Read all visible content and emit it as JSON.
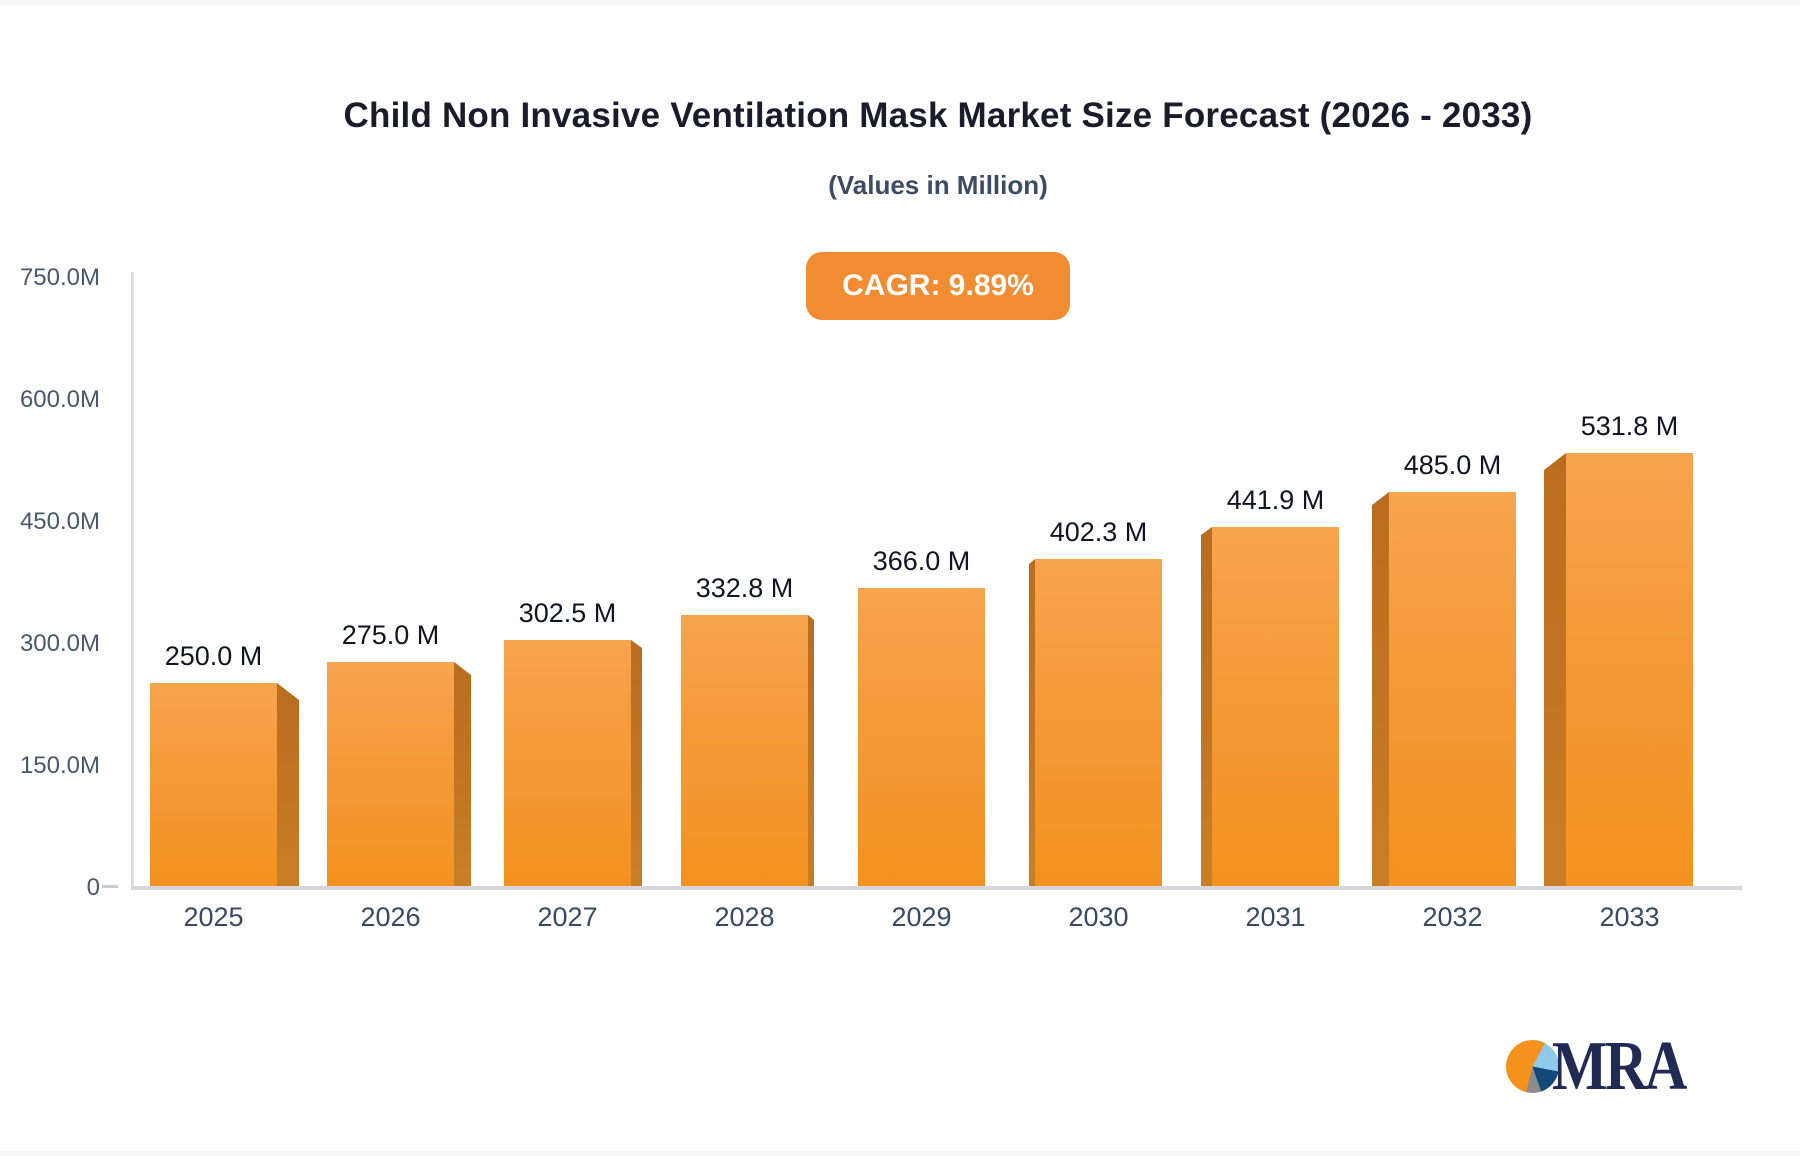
{
  "header": {
    "title": "Child Non Invasive Ventilation Mask Market Size Forecast (2026 - 2033)",
    "subtitle": "(Values in Million)",
    "cagr_badge": "CAGR: 9.89%"
  },
  "chart_data": {
    "type": "bar",
    "style": "3d-perspective-columns",
    "title": "Child Non Invasive Ventilation Mask Market Size Forecast (2026 - 2033)",
    "subtitle": "(Values in Million)",
    "annotation": "CAGR: 9.89%",
    "categories": [
      "2025",
      "2026",
      "2027",
      "2028",
      "2029",
      "2030",
      "2031",
      "2032",
      "2033"
    ],
    "values": [
      250.0,
      275.0,
      302.5,
      332.8,
      366.0,
      402.3,
      441.9,
      485.0,
      531.8
    ],
    "bar_labels": [
      "250.0 M",
      "275.0 M",
      "302.5 M",
      "332.8 M",
      "366.0 M",
      "402.3 M",
      "441.9 M",
      "485.0 M",
      "531.8 M"
    ],
    "unit": "M",
    "xlabel": "",
    "ylabel": "",
    "ylim": [
      0,
      750
    ],
    "y_ticks": [
      750,
      600,
      450,
      300,
      150,
      0
    ],
    "y_tick_labels": [
      "750.0M",
      "600.0M",
      "450.0M",
      "300.0M",
      "150.0M",
      "0"
    ],
    "grid": false,
    "legend": false
  },
  "colors": {
    "bar_face_top": "#F6A44E",
    "bar_face_bottom": "#F3921F",
    "bar_side": "#BE711F",
    "badge_background": "#F28C33",
    "badge_text": "#FFFFFF",
    "title_text": "#1A1B2B",
    "subtitle_text": "#3E4C63",
    "axis_line": "#D8D8DE",
    "y_tick_text": "#49586C",
    "x_tick_text": "#394963",
    "value_label_text": "#111423"
  },
  "branding": {
    "logo_text": "MRA",
    "logo_pie_colors": [
      "#F5921E",
      "#8FC9EA",
      "#15497A",
      "#8C8C8C"
    ]
  }
}
